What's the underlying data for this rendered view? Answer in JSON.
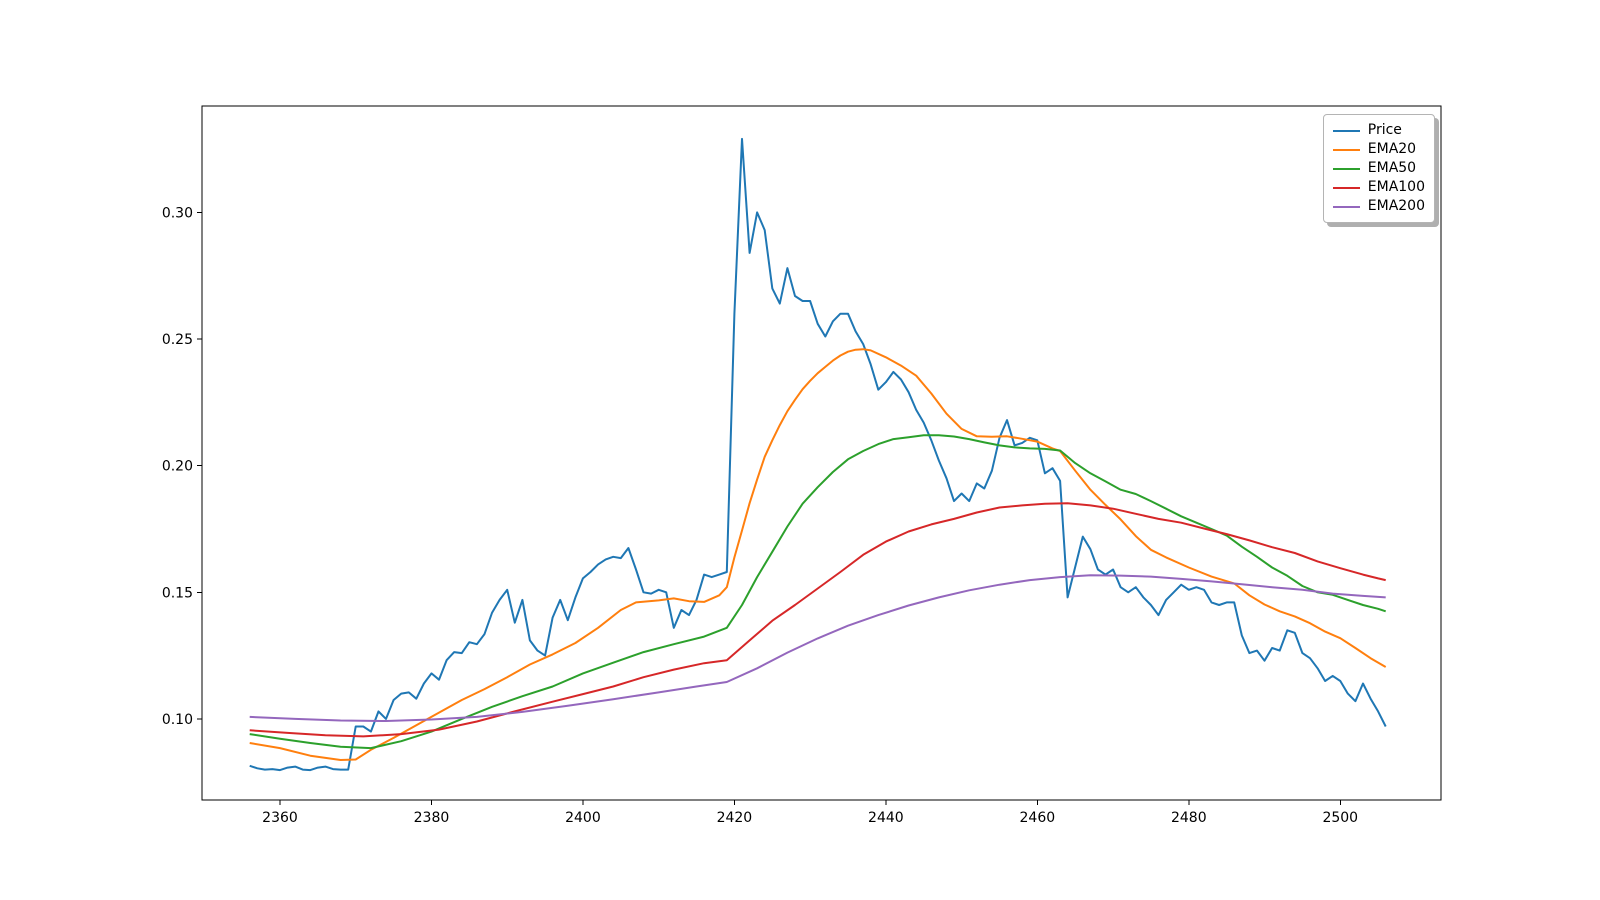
{
  "figure": {
    "background": "#ffffff"
  },
  "chart_data": {
    "type": "line",
    "title": "",
    "xlabel": "",
    "ylabel": "",
    "grid": false,
    "xlim": [
      2349.7,
      2513.3
    ],
    "ylim": [
      0.068,
      0.342
    ],
    "x_tick_labels": [
      "2360",
      "2380",
      "2400",
      "2420",
      "2440",
      "2460",
      "2480",
      "2500"
    ],
    "y_tick_labels": [
      "0.10",
      "0.15",
      "0.20",
      "0.25",
      "0.30"
    ],
    "legend": {
      "location": "upper right",
      "entries": [
        "Price",
        "EMA20",
        "EMA50",
        "EMA100",
        "EMA200"
      ]
    },
    "series": [
      {
        "name": "Price",
        "color": "#1f77b4",
        "x_start": 2356,
        "x_step": 1,
        "values": [
          0.0815,
          0.0805,
          0.08,
          0.0802,
          0.0798,
          0.0808,
          0.0812,
          0.08,
          0.0798,
          0.0808,
          0.0812,
          0.0802,
          0.08,
          0.08,
          0.097,
          0.097,
          0.095,
          0.103,
          0.1,
          0.1075,
          0.11,
          0.1105,
          0.108,
          0.114,
          0.118,
          0.1155,
          0.1232,
          0.1264,
          0.126,
          0.1303,
          0.1295,
          0.1335,
          0.142,
          0.147,
          0.151,
          0.138,
          0.147,
          0.131,
          0.127,
          0.125,
          0.14,
          0.147,
          0.139,
          0.148,
          0.1555,
          0.158,
          0.161,
          0.163,
          0.164,
          0.1635,
          0.1675,
          0.159,
          0.15,
          0.1495,
          0.151,
          0.15,
          0.136,
          0.143,
          0.141,
          0.147,
          0.157,
          0.156,
          0.157,
          0.158,
          0.26,
          0.329,
          0.284,
          0.3,
          0.293,
          0.27,
          0.264,
          0.278,
          0.267,
          0.265,
          0.265,
          0.256,
          0.251,
          0.257,
          0.26,
          0.26,
          0.253,
          0.248,
          0.24,
          0.23,
          0.233,
          0.237,
          0.234,
          0.229,
          0.222,
          0.217,
          0.21,
          0.202,
          0.195,
          0.186,
          0.189,
          0.186,
          0.193,
          0.191,
          0.198,
          0.211,
          0.218,
          0.208,
          0.209,
          0.211,
          0.21,
          0.197,
          0.199,
          0.194,
          0.148,
          0.16,
          0.172,
          0.167,
          0.159,
          0.157,
          0.159,
          0.152,
          0.15,
          0.152,
          0.148,
          0.145,
          0.141,
          0.147,
          0.15,
          0.153,
          0.151,
          0.152,
          0.151,
          0.146,
          0.145,
          0.146,
          0.146,
          0.133,
          0.126,
          0.127,
          0.123,
          0.128,
          0.127,
          0.135,
          0.134,
          0.126,
          0.124,
          0.12,
          0.115,
          0.117,
          0.115,
          0.11,
          0.107,
          0.114,
          0.108,
          0.103,
          0.097
        ]
      },
      {
        "name": "EMA20",
        "color": "#ff7f0e",
        "points": [
          [
            2356,
            0.0905
          ],
          [
            2360,
            0.0885
          ],
          [
            2364,
            0.0855
          ],
          [
            2368,
            0.0838
          ],
          [
            2370,
            0.084
          ],
          [
            2372,
            0.0878
          ],
          [
            2375,
            0.0925
          ],
          [
            2378,
            0.0975
          ],
          [
            2381,
            0.1025
          ],
          [
            2384,
            0.1075
          ],
          [
            2387,
            0.1118
          ],
          [
            2390,
            0.1165
          ],
          [
            2393,
            0.1215
          ],
          [
            2396,
            0.1255
          ],
          [
            2399,
            0.13
          ],
          [
            2402,
            0.136
          ],
          [
            2405,
            0.143
          ],
          [
            2407,
            0.146
          ],
          [
            2410,
            0.1468
          ],
          [
            2412,
            0.1476
          ],
          [
            2414,
            0.1465
          ],
          [
            2416,
            0.1462
          ],
          [
            2418,
            0.1488
          ],
          [
            2419,
            0.152
          ],
          [
            2420,
            0.1638
          ],
          [
            2421,
            0.1744
          ],
          [
            2422,
            0.1852
          ],
          [
            2423,
            0.1945
          ],
          [
            2424,
            0.2035
          ],
          [
            2425,
            0.21
          ],
          [
            2426,
            0.216
          ],
          [
            2427,
            0.2215
          ],
          [
            2428,
            0.226
          ],
          [
            2429,
            0.2302
          ],
          [
            2430,
            0.2335
          ],
          [
            2431,
            0.2365
          ],
          [
            2432,
            0.239
          ],
          [
            2433,
            0.2415
          ],
          [
            2434,
            0.2435
          ],
          [
            2435,
            0.245
          ],
          [
            2436,
            0.2458
          ],
          [
            2437,
            0.246
          ],
          [
            2438,
            0.2455
          ],
          [
            2440,
            0.2428
          ],
          [
            2442,
            0.2395
          ],
          [
            2444,
            0.2355
          ],
          [
            2446,
            0.2285
          ],
          [
            2448,
            0.2205
          ],
          [
            2450,
            0.2145
          ],
          [
            2452,
            0.2116
          ],
          [
            2454,
            0.2114
          ],
          [
            2456,
            0.2116
          ],
          [
            2458,
            0.2106
          ],
          [
            2460,
            0.2095
          ],
          [
            2462,
            0.2068
          ],
          [
            2463,
            0.2058
          ],
          [
            2465,
            0.198
          ],
          [
            2467,
            0.1905
          ],
          [
            2469,
            0.1845
          ],
          [
            2471,
            0.1788
          ],
          [
            2473,
            0.1722
          ],
          [
            2475,
            0.1668
          ],
          [
            2477,
            0.1638
          ],
          [
            2480,
            0.1598
          ],
          [
            2483,
            0.1562
          ],
          [
            2486,
            0.1535
          ],
          [
            2488,
            0.1488
          ],
          [
            2490,
            0.1452
          ],
          [
            2492,
            0.1425
          ],
          [
            2494,
            0.1405
          ],
          [
            2496,
            0.1378
          ],
          [
            2498,
            0.1345
          ],
          [
            2500,
            0.1319
          ],
          [
            2502,
            0.128
          ],
          [
            2504,
            0.124
          ],
          [
            2506,
            0.1205
          ]
        ]
      },
      {
        "name": "EMA50",
        "color": "#2ca02c",
        "points": [
          [
            2356,
            0.094
          ],
          [
            2360,
            0.0922
          ],
          [
            2364,
            0.0905
          ],
          [
            2368,
            0.089
          ],
          [
            2372,
            0.0885
          ],
          [
            2376,
            0.0912
          ],
          [
            2380,
            0.095
          ],
          [
            2384,
            0.1
          ],
          [
            2388,
            0.1048
          ],
          [
            2392,
            0.109
          ],
          [
            2396,
            0.1128
          ],
          [
            2400,
            0.118
          ],
          [
            2404,
            0.1222
          ],
          [
            2408,
            0.1264
          ],
          [
            2412,
            0.1295
          ],
          [
            2416,
            0.1325
          ],
          [
            2419,
            0.136
          ],
          [
            2421,
            0.145
          ],
          [
            2423,
            0.156
          ],
          [
            2425,
            0.166
          ],
          [
            2427,
            0.176
          ],
          [
            2429,
            0.185
          ],
          [
            2431,
            0.1915
          ],
          [
            2433,
            0.1975
          ],
          [
            2435,
            0.2025
          ],
          [
            2437,
            0.2058
          ],
          [
            2439,
            0.2085
          ],
          [
            2441,
            0.2105
          ],
          [
            2443,
            0.2112
          ],
          [
            2445,
            0.212
          ],
          [
            2447,
            0.212
          ],
          [
            2449,
            0.2115
          ],
          [
            2451,
            0.2105
          ],
          [
            2453,
            0.2092
          ],
          [
            2455,
            0.208
          ],
          [
            2457,
            0.2072
          ],
          [
            2459,
            0.2068
          ],
          [
            2461,
            0.2066
          ],
          [
            2463,
            0.206
          ],
          [
            2465,
            0.201
          ],
          [
            2467,
            0.197
          ],
          [
            2469,
            0.1938
          ],
          [
            2471,
            0.1905
          ],
          [
            2473,
            0.1888
          ],
          [
            2475,
            0.186
          ],
          [
            2477,
            0.183
          ],
          [
            2479,
            0.18
          ],
          [
            2481,
            0.1775
          ],
          [
            2483,
            0.175
          ],
          [
            2485,
            0.1724
          ],
          [
            2487,
            0.168
          ],
          [
            2489,
            0.164
          ],
          [
            2491,
            0.1598
          ],
          [
            2493,
            0.1565
          ],
          [
            2495,
            0.1525
          ],
          [
            2497,
            0.15
          ],
          [
            2499,
            0.149
          ],
          [
            2501,
            0.147
          ],
          [
            2503,
            0.145
          ],
          [
            2505,
            0.1435
          ],
          [
            2506,
            0.1425
          ]
        ]
      },
      {
        "name": "EMA100",
        "color": "#d62728",
        "points": [
          [
            2356,
            0.0955
          ],
          [
            2361,
            0.0945
          ],
          [
            2366,
            0.0936
          ],
          [
            2371,
            0.0931
          ],
          [
            2376,
            0.094
          ],
          [
            2381,
            0.0958
          ],
          [
            2386,
            0.099
          ],
          [
            2391,
            0.103
          ],
          [
            2396,
            0.1068
          ],
          [
            2400,
            0.1098
          ],
          [
            2404,
            0.1128
          ],
          [
            2408,
            0.1165
          ],
          [
            2412,
            0.1195
          ],
          [
            2416,
            0.122
          ],
          [
            2419,
            0.1232
          ],
          [
            2422,
            0.131
          ],
          [
            2425,
            0.1388
          ],
          [
            2428,
            0.145
          ],
          [
            2431,
            0.1515
          ],
          [
            2434,
            0.158
          ],
          [
            2437,
            0.1648
          ],
          [
            2440,
            0.17
          ],
          [
            2443,
            0.174
          ],
          [
            2446,
            0.1768
          ],
          [
            2449,
            0.179
          ],
          [
            2452,
            0.1815
          ],
          [
            2455,
            0.1835
          ],
          [
            2458,
            0.1843
          ],
          [
            2461,
            0.185
          ],
          [
            2464,
            0.1852
          ],
          [
            2467,
            0.1843
          ],
          [
            2470,
            0.183
          ],
          [
            2473,
            0.181
          ],
          [
            2476,
            0.179
          ],
          [
            2479,
            0.1775
          ],
          [
            2482,
            0.1752
          ],
          [
            2485,
            0.173
          ],
          [
            2488,
            0.1705
          ],
          [
            2491,
            0.1678
          ],
          [
            2494,
            0.1655
          ],
          [
            2497,
            0.1622
          ],
          [
            2500,
            0.1595
          ],
          [
            2503,
            0.157
          ],
          [
            2505,
            0.1555
          ],
          [
            2506,
            0.1548
          ]
        ]
      },
      {
        "name": "EMA200",
        "color": "#9467bd",
        "points": [
          [
            2356,
            0.1008
          ],
          [
            2362,
            0.1
          ],
          [
            2368,
            0.0994
          ],
          [
            2374,
            0.0992
          ],
          [
            2380,
            0.0998
          ],
          [
            2386,
            0.1008
          ],
          [
            2392,
            0.1028
          ],
          [
            2398,
            0.1052
          ],
          [
            2404,
            0.1078
          ],
          [
            2410,
            0.1105
          ],
          [
            2415,
            0.1128
          ],
          [
            2419,
            0.1146
          ],
          [
            2423,
            0.12
          ],
          [
            2427,
            0.1262
          ],
          [
            2431,
            0.1318
          ],
          [
            2435,
            0.1368
          ],
          [
            2439,
            0.141
          ],
          [
            2443,
            0.1448
          ],
          [
            2447,
            0.148
          ],
          [
            2451,
            0.1508
          ],
          [
            2455,
            0.153
          ],
          [
            2459,
            0.1548
          ],
          [
            2463,
            0.156
          ],
          [
            2467,
            0.1567
          ],
          [
            2471,
            0.1566
          ],
          [
            2475,
            0.1562
          ],
          [
            2479,
            0.1553
          ],
          [
            2483,
            0.1543
          ],
          [
            2487,
            0.1532
          ],
          [
            2491,
            0.152
          ],
          [
            2495,
            0.151
          ],
          [
            2499,
            0.1495
          ],
          [
            2503,
            0.1486
          ],
          [
            2506,
            0.148
          ]
        ]
      }
    ]
  }
}
